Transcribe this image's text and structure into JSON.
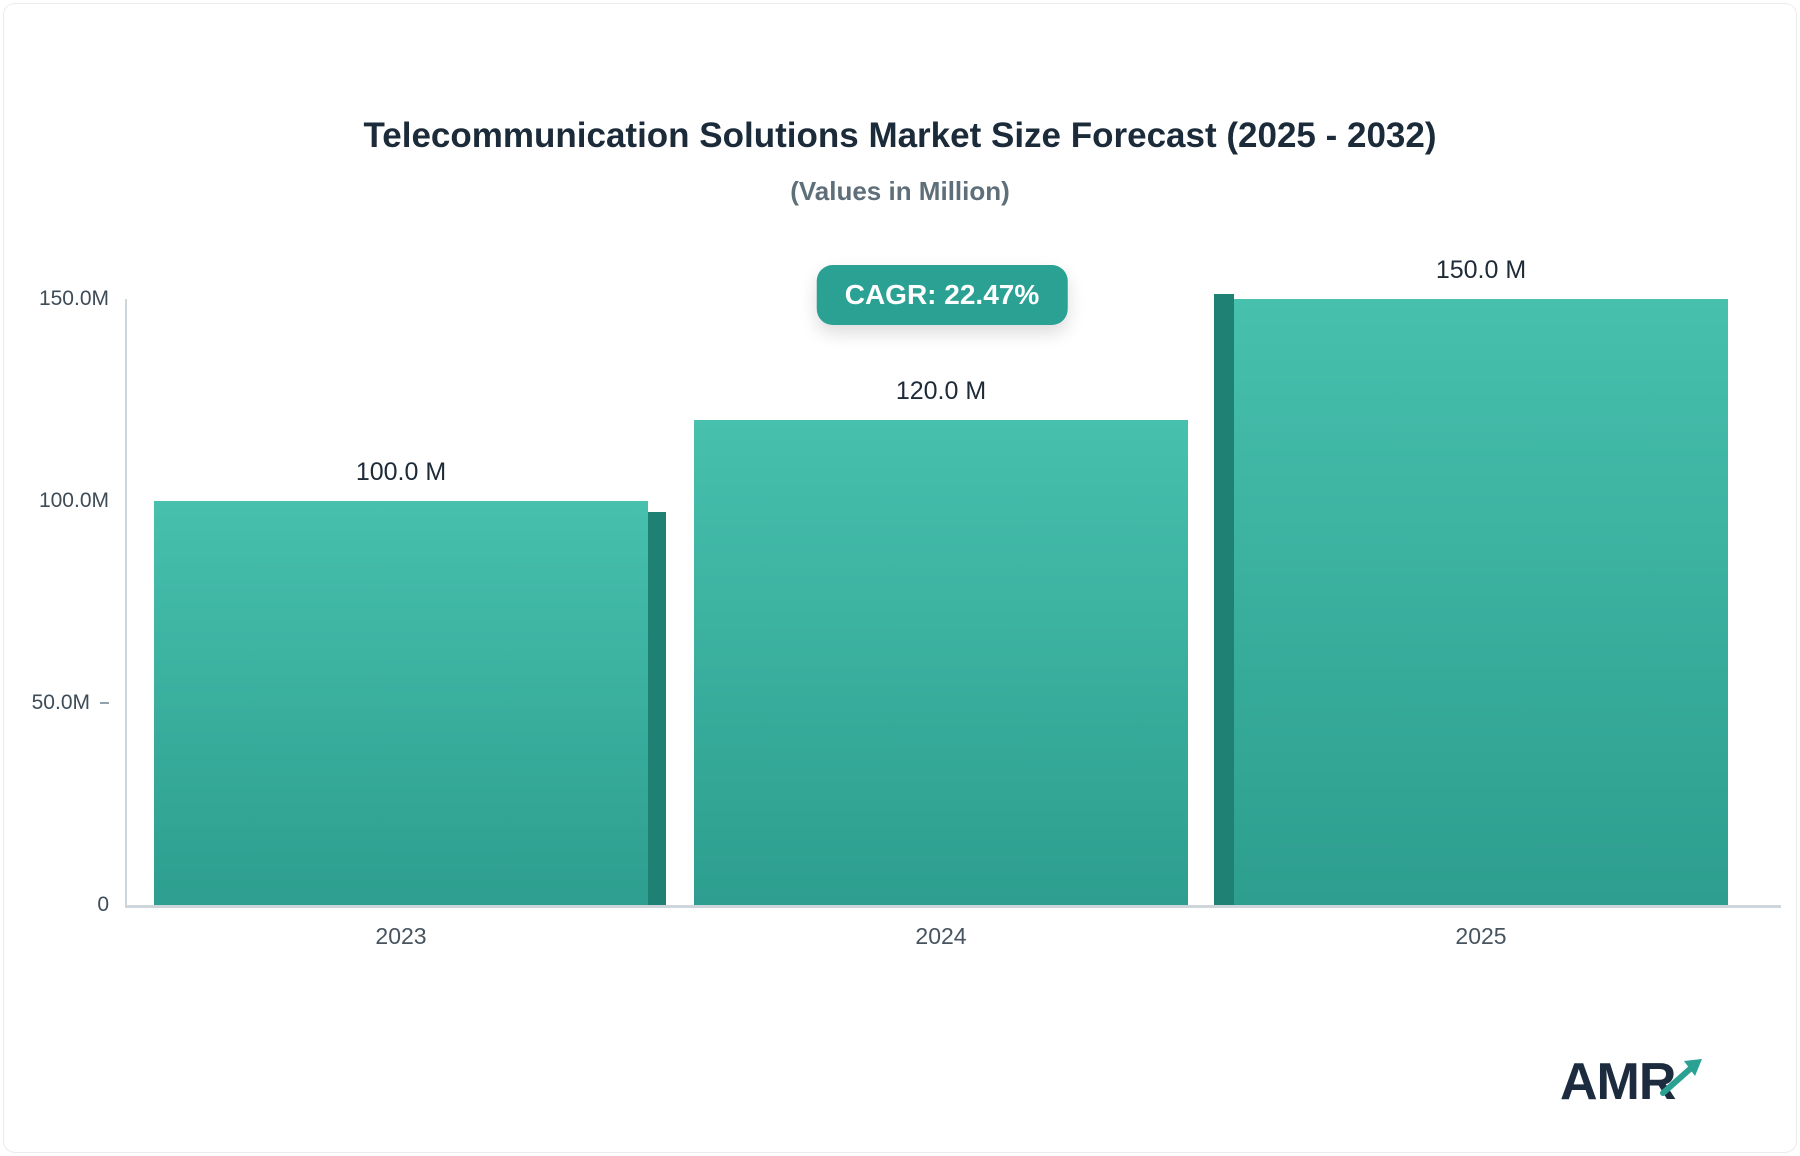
{
  "chart_data": {
    "type": "bar",
    "title": "Telecommunication Solutions Market Size Forecast (2025 - 2032)",
    "subtitle": "(Values in Million)",
    "cagr_label": "CAGR: 22.47%",
    "categories": [
      "2023",
      "2024",
      "2025"
    ],
    "values": [
      100.0,
      120.0,
      150.0
    ],
    "value_labels": [
      "100.0 M",
      "120.0 M",
      "150.0 M"
    ],
    "xlabel": "",
    "ylabel": "",
    "ylim": [
      0,
      150
    ],
    "yticks": [
      {
        "value": 150,
        "label": "150.0M",
        "dash": false
      },
      {
        "value": 100,
        "label": "100.0M",
        "dash": false
      },
      {
        "value": 50,
        "label": "50.0M",
        "dash": true
      },
      {
        "value": 0,
        "label": "0",
        "dash": false
      }
    ],
    "grid": false,
    "legend": "none",
    "accent": "#2aa193",
    "bar_color_top": "#47c0ae",
    "bar_color_bottom": "#2d9e8f",
    "bar_side_color": "#1f8174"
  },
  "branding": {
    "logo_text": "AMR"
  }
}
